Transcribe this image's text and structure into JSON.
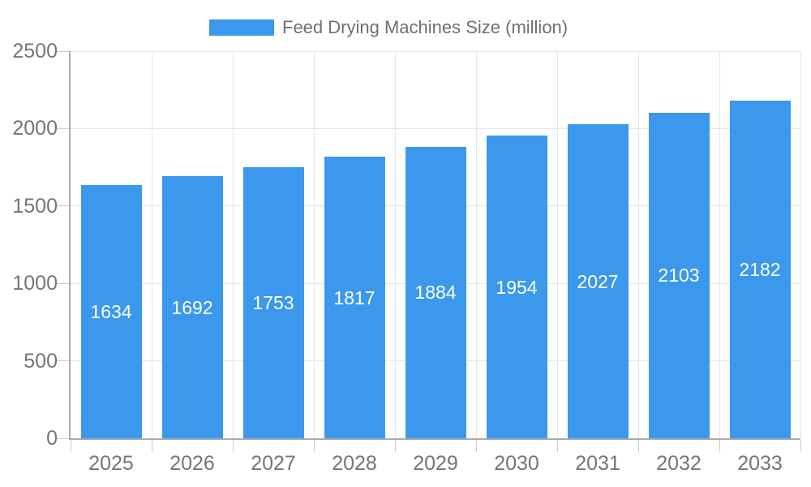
{
  "legend": {
    "label": "Feed Drying Machines Size (million)"
  },
  "chart_data": {
    "type": "bar",
    "categories": [
      "2025",
      "2026",
      "2027",
      "2028",
      "2029",
      "2030",
      "2031",
      "2032",
      "2033"
    ],
    "values": [
      1634,
      1692,
      1753,
      1817,
      1884,
      1954,
      2027,
      2103,
      2182
    ],
    "series": [
      {
        "name": "Feed Drying Machines Size (million)",
        "values": [
          1634,
          1692,
          1753,
          1817,
          1884,
          1954,
          2027,
          2103,
          2182
        ]
      }
    ],
    "title": "",
    "xlabel": "",
    "ylabel": "",
    "ylim": [
      0,
      2500
    ],
    "yticks": [
      0,
      500,
      1000,
      1500,
      2000,
      2500
    ],
    "grid": true,
    "legend_position": "top-center",
    "bar_color": "#3b98ec",
    "value_label_color": "#ffffff",
    "axis_text_color": "#757575",
    "gridline_color": "#e6e6e6",
    "axis_line_color": "#ababab"
  }
}
